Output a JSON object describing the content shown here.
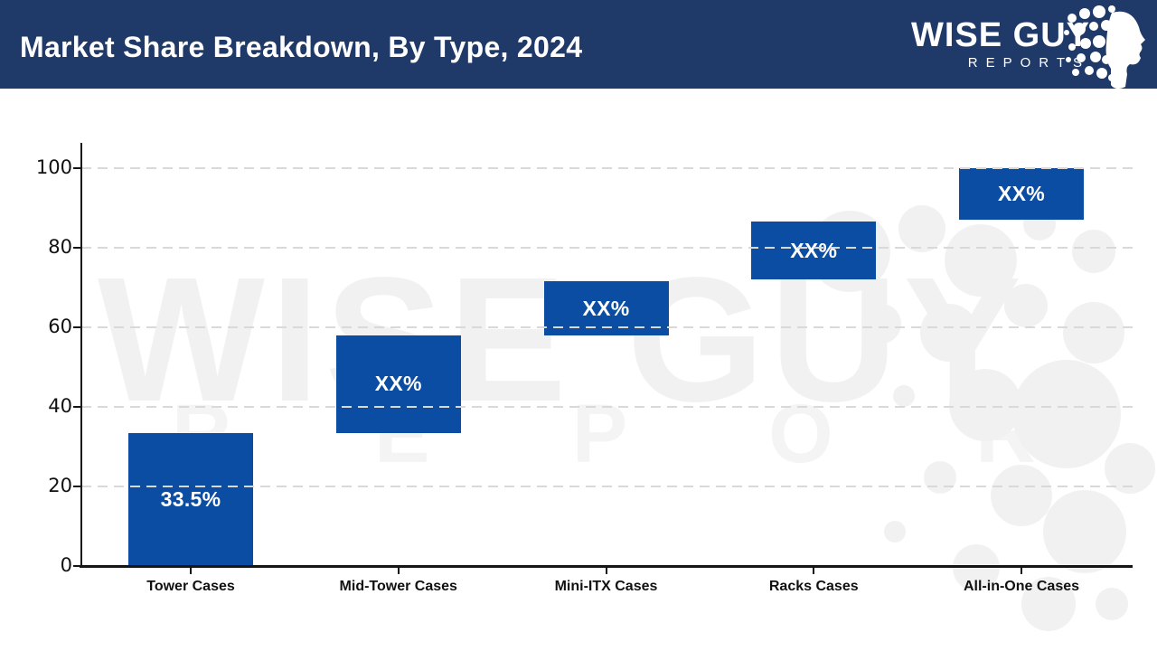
{
  "header": {
    "title": "Market Share Breakdown, By Type, 2024"
  },
  "logo": {
    "line1": "WISE GUY",
    "line2": "REPORTS"
  },
  "watermark": {
    "line1": "WISE GUY",
    "line2": "R E P O R T S"
  },
  "colors": {
    "header_bg": "#1f3968",
    "bar": "#0b4da2",
    "grid": "#d9d9d9",
    "axis": "#151515",
    "bar_label_text": "#ffffff",
    "watermark": "#f1f1f1"
  },
  "chart_data": {
    "type": "bar",
    "subtype": "waterfall",
    "title": "Market Share Breakdown, By Type, 2024",
    "categories": [
      "Tower Cases",
      "Mid-Tower Cases",
      "Mini-ITX Cases",
      "Racks Cases",
      "All-in-One Cases"
    ],
    "segments": [
      {
        "category": "Tower Cases",
        "start": 0,
        "end": 33.5,
        "label": "33.5%"
      },
      {
        "category": "Mid-Tower Cases",
        "start": 33.5,
        "end": 58,
        "label": "XX%"
      },
      {
        "category": "Mini-ITX Cases",
        "start": 58,
        "end": 71.5,
        "label": "XX%"
      },
      {
        "category": "Racks Cases",
        "start": 72,
        "end": 86.5,
        "label": "XX%"
      },
      {
        "category": "All-in-One Cases",
        "start": 87,
        "end": 100,
        "label": "XX%"
      }
    ],
    "yticks": [
      0,
      20,
      40,
      60,
      80,
      100
    ],
    "ylim": [
      0,
      107
    ],
    "value_suffix": "%",
    "grid": "horizontal dashed",
    "legend": "none"
  }
}
